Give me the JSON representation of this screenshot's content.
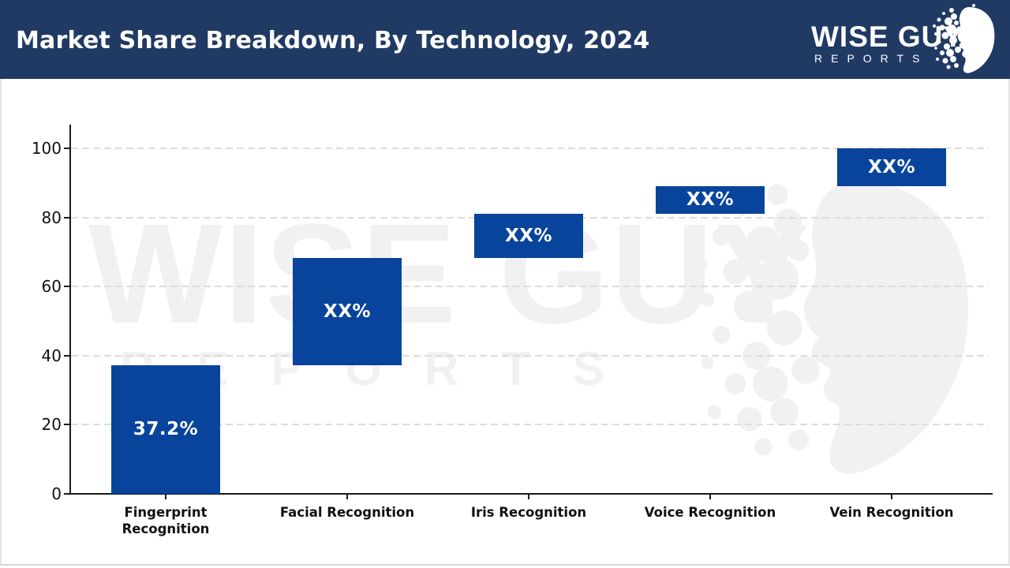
{
  "header": {
    "title": "Market Share Breakdown, By Technology, 2024",
    "logo": {
      "line1": "WISE GUY",
      "line2": "REPORTS"
    }
  },
  "watermark": {
    "line1": "WISE GUY",
    "line2": "REPORTS"
  },
  "colors": {
    "header_bg": "#203a64",
    "bar": "#08449c",
    "grid": "#dcdcdc",
    "axis": "#1a1a1a",
    "bar_label": "#ffffff",
    "watermark": "#f1f1f1"
  },
  "chart_data": {
    "type": "bar",
    "subtype": "waterfall",
    "title": "Market Share Breakdown, By Technology, 2024",
    "xlabel": "",
    "ylabel": "",
    "legend": "none",
    "grid": "horizontal-dashed",
    "ylim": [
      0,
      105
    ],
    "yticks": [
      0,
      20,
      40,
      60,
      80,
      100
    ],
    "categories": [
      "Fingerprint Recognition",
      "Facial Recognition",
      "Iris Recognition",
      "Voice Recognition",
      "Vein Recognition"
    ],
    "segments": [
      {
        "category": "Fingerprint Recognition",
        "start": 0,
        "end": 37.2,
        "label": "37.2%"
      },
      {
        "category": "Facial Recognition",
        "start": 37.2,
        "end": 68.2,
        "label": "XX%"
      },
      {
        "category": "Iris Recognition",
        "start": 68.2,
        "end": 81.0,
        "label": "XX%"
      },
      {
        "category": "Voice Recognition",
        "start": 81.0,
        "end": 89.1,
        "label": "XX%"
      },
      {
        "category": "Vein Recognition",
        "start": 89.1,
        "end": 100,
        "label": "XX%"
      }
    ]
  }
}
